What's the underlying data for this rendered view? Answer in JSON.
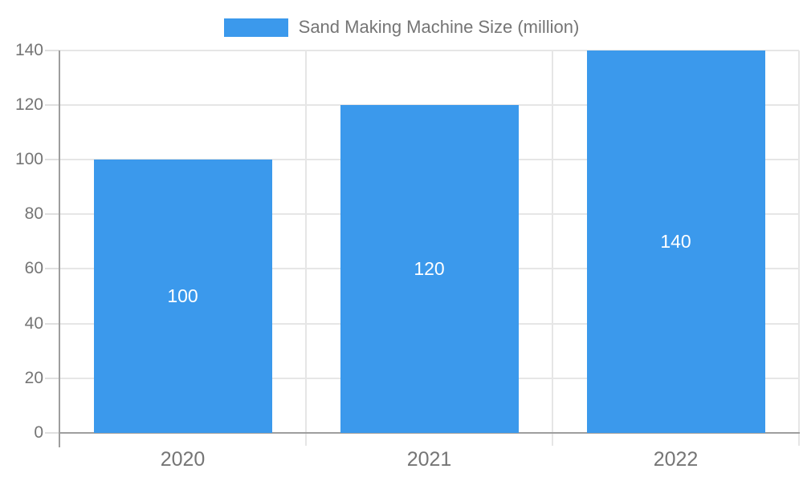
{
  "legend": {
    "label": "Sand Making Machine Size (million)"
  },
  "colors": {
    "bar": "#3b99ec",
    "label_text": "#757575",
    "grid_line": "#e6e6e6",
    "axis_line": "#9e9e9e",
    "tick_line": "#e0e0e0",
    "bar_value_text": "#ffffff",
    "background": "#ffffff"
  },
  "chart_data": {
    "type": "bar",
    "title": "Sand Making Machine Size (million)",
    "categories": [
      "2020",
      "2021",
      "2022"
    ],
    "series": [
      {
        "name": "Sand Making Machine Size (million)",
        "values": [
          100,
          120,
          140
        ]
      }
    ],
    "values": [
      100,
      120,
      140
    ],
    "data_labels": [
      "100",
      "120",
      "140"
    ],
    "xlabel": "",
    "ylabel": "",
    "ylim": [
      0,
      140
    ],
    "yticks": [
      0,
      20,
      40,
      60,
      80,
      100,
      120,
      140
    ],
    "grid": true,
    "legend_position": "top-center"
  }
}
